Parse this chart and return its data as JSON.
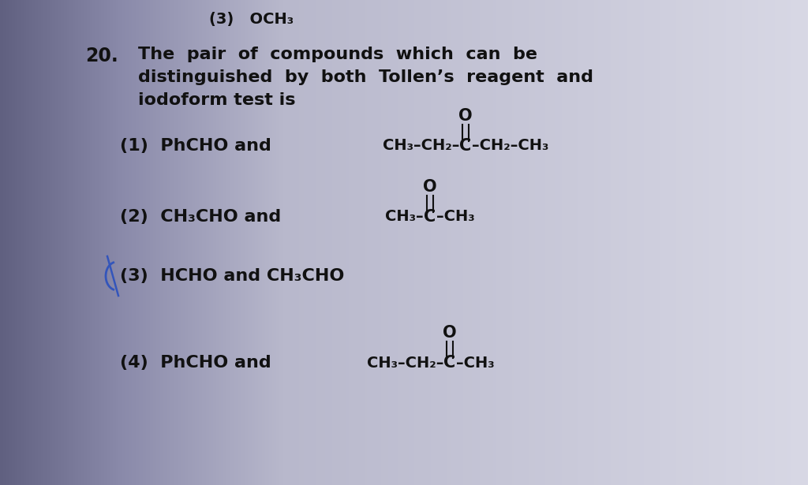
{
  "bg_left_color": "#8a8aaa",
  "bg_mid_color": "#b0b0c8",
  "bg_right_color": "#d5d5e5",
  "text_color": "#111111",
  "header_line": "(3)   OCH₃",
  "q_num": "20.",
  "q_line1": "The  pair  of  compounds  which  can  be",
  "q_line2": "distinguished  by  both  Tollen’s  reagent  and",
  "q_line3": "iodoform test is",
  "opt1_left": "(1)  PhCHO and",
  "opt2_left": "(2)  CH₃CHO and",
  "opt3": "(3)  HCHO and CH₃CHO",
  "opt4_left": "(4)  PhCHO and",
  "struct1_left": "CH₃–CH₂–",
  "struct1_right": "–CH₂–CH₃",
  "struct2_left": "CH₃–",
  "struct2_right": "–CH₃",
  "struct4_left": "CH₃–CH₂–",
  "struct4_right": "–CH₃",
  "blue_mark_color": "#3355bb",
  "font_size_main": 16,
  "font_size_struct": 14,
  "font_size_header": 14
}
